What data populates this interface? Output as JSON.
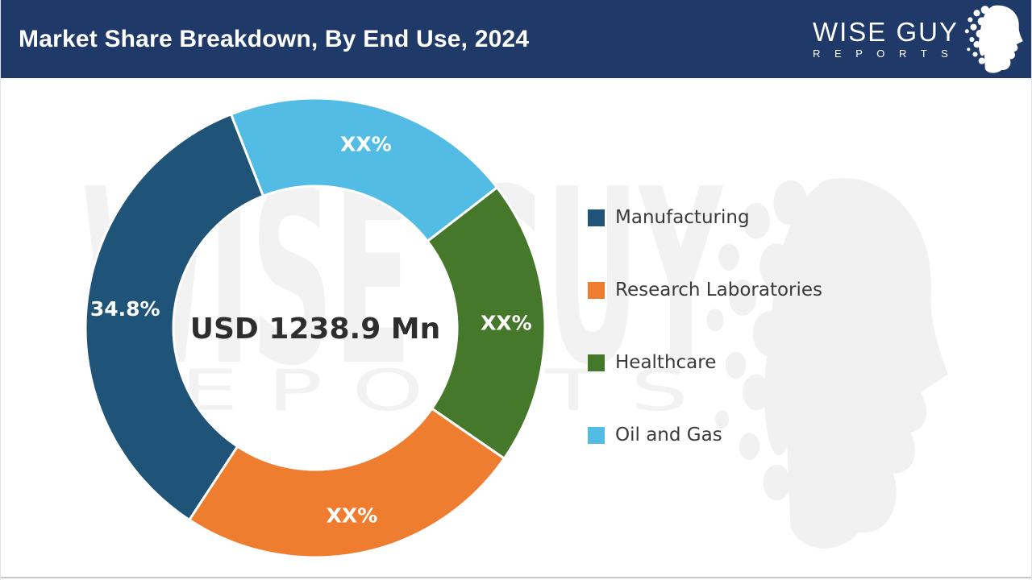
{
  "header": {
    "title": "Market Share Breakdown, By End Use, 2024",
    "background_color": "#1f3a68",
    "logo": {
      "line1": "WISE GUY",
      "line2": "R E P O R T S"
    }
  },
  "watermark": {
    "line1": "WISE GUY",
    "line2": "R E P O R T S"
  },
  "chart_data": {
    "type": "donut",
    "title": "Market Share Breakdown, By End Use, 2024",
    "center_label": "USD 1238.9 Mn",
    "start_angle_deg": 111.5,
    "direction": "counterclockwise",
    "outer_radius_px": 285,
    "inner_radius_px": 176,
    "label_radius_px": 237,
    "segment_edge_color": "#ffffff",
    "value_label_color": "#ffffff",
    "center_label_color": "#2e2e2e",
    "legend_position": "right",
    "segments": [
      {
        "name": "Manufacturing",
        "value": 34.8,
        "label": "34.8%",
        "color": "#1f5378"
      },
      {
        "name": "Research Laboratories",
        "value": 24.6,
        "label": "XX%",
        "color": "#ee7d30"
      },
      {
        "name": "Healthcare",
        "value": 20.1,
        "label": "XX%",
        "color": "#45782a"
      },
      {
        "name": "Oil and Gas",
        "value": 20.5,
        "label": "XX%",
        "color": "#52bce4"
      }
    ]
  }
}
